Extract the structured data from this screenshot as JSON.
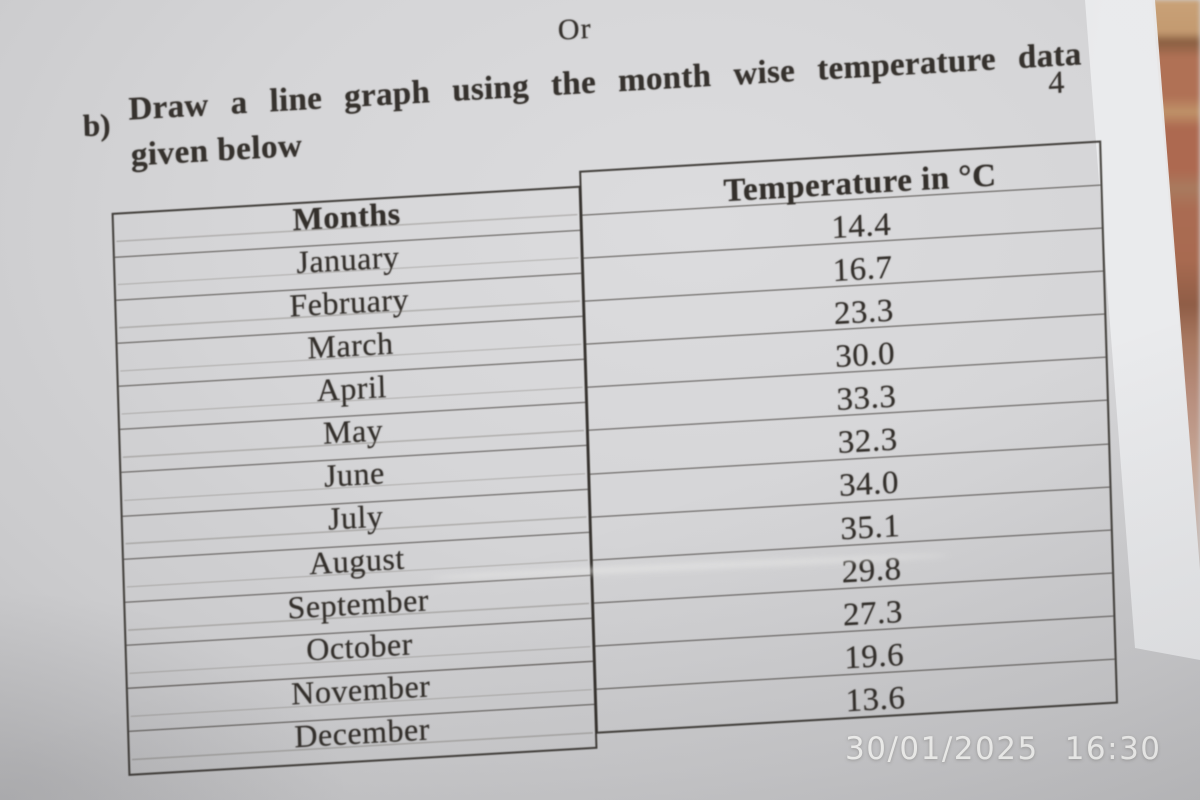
{
  "page": {
    "or_label": "Or",
    "question_label": "b)",
    "question_text": "Draw a line graph using the month wise temperature data",
    "question_text_line2": "given below",
    "marks": "4"
  },
  "table": {
    "month_header": "Months",
    "temp_header": "Temperature in °C",
    "rows": [
      {
        "month": "January",
        "temp": "14.4"
      },
      {
        "month": "February",
        "temp": "16.7"
      },
      {
        "month": "March",
        "temp": "23.3"
      },
      {
        "month": "April",
        "temp": "30.0"
      },
      {
        "month": "May",
        "temp": "33.3"
      },
      {
        "month": "June",
        "temp": "32.3"
      },
      {
        "month": "July",
        "temp": "34.0"
      },
      {
        "month": "August",
        "temp": "35.1"
      },
      {
        "month": "September",
        "temp": "29.8"
      },
      {
        "month": "October",
        "temp": "27.3"
      },
      {
        "month": "November",
        "temp": "19.6"
      },
      {
        "month": "December",
        "temp": "13.6"
      }
    ]
  },
  "camera_overlay": {
    "date": "30/01/2025",
    "time": "16:30"
  },
  "chart_data": {
    "type": "table",
    "title": "Month wise temperature data",
    "categories": [
      "January",
      "February",
      "March",
      "April",
      "May",
      "June",
      "July",
      "August",
      "September",
      "October",
      "November",
      "December"
    ],
    "series": [
      {
        "name": "Temperature in °C",
        "values": [
          14.4,
          16.7,
          23.3,
          30.0,
          33.3,
          32.3,
          34.0,
          35.1,
          29.8,
          27.3,
          19.6,
          13.6
        ]
      }
    ]
  },
  "colors": {
    "paper": "#d5d5d7",
    "ink": "#34302c",
    "table_line": "#342f2a",
    "wood_brick": "#ad6950",
    "wood_tan": "#c9a177",
    "timestamp": "#fbfbf9"
  }
}
